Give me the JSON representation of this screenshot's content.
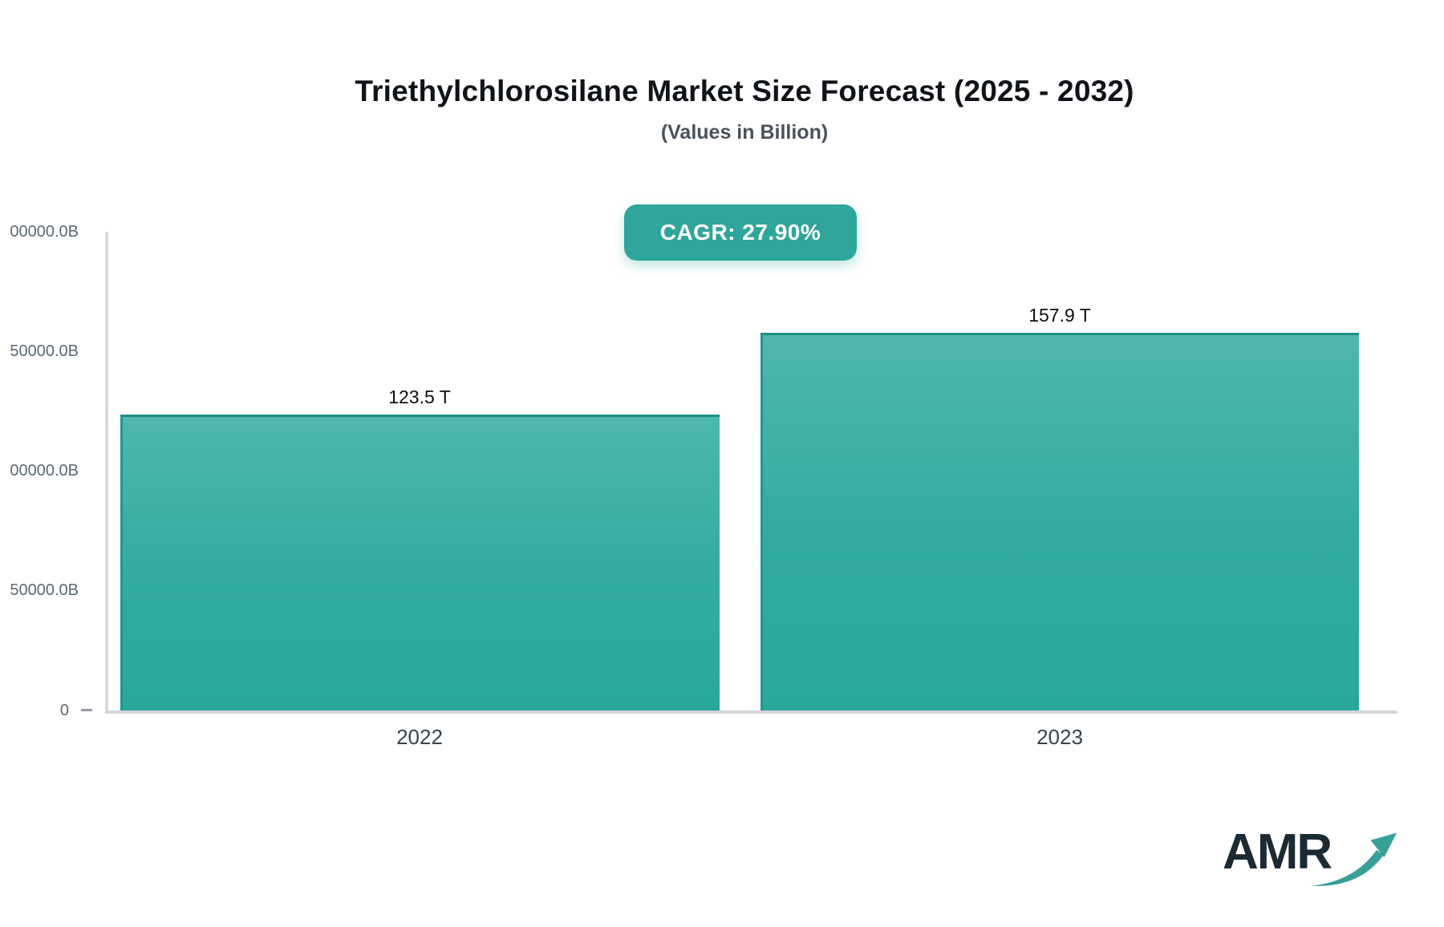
{
  "header": {
    "title": "Triethylchlorosilane Market Size Forecast (2025 - 2032)",
    "subtitle": "(Values in Billion)"
  },
  "badge": {
    "label": "CAGR: 27.90%"
  },
  "chart_data": {
    "type": "bar",
    "categories": [
      "2022",
      "2023"
    ],
    "values": [
      123500,
      157900
    ],
    "value_labels": [
      "123.5 T",
      "157.9 T"
    ],
    "unit": "Billion",
    "title": "Triethylchlorosilane Market Size Forecast (2025 - 2032)",
    "subtitle": "(Values in Billion)",
    "ylim": [
      0,
      200000
    ],
    "ytick_interval": 50000,
    "yticks_visible": [
      "00000.0B",
      "50000.0B",
      "00000.0B",
      "50000.0B",
      "0"
    ],
    "grid": false,
    "legend": false,
    "colors": {
      "bar_gradient_top": "#4fb7ac",
      "bar_gradient_bottom": "#28a89b",
      "bar_edge": "#1e8e84",
      "badge_background": "#2ea69b",
      "axis_line": "#d2d5da",
      "tick_label": "#5c6975",
      "category_label": "#39434e"
    }
  },
  "logo": {
    "text": "AMR",
    "icon": "growth-arrow-icon",
    "text_color": "#1b2a33",
    "arrow_color": "#37a199"
  }
}
